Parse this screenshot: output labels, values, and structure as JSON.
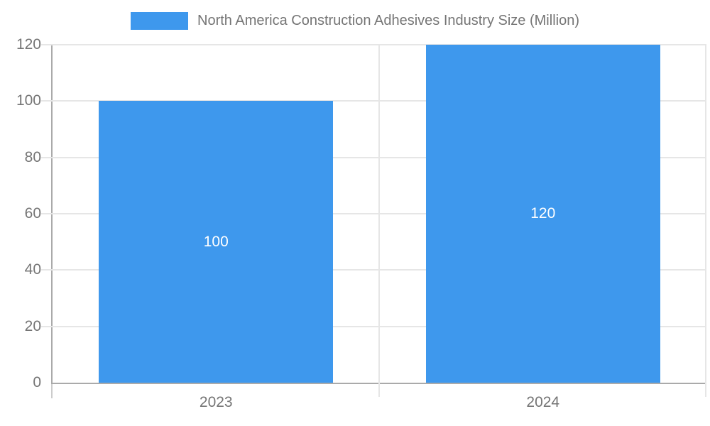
{
  "chart_data": {
    "type": "bar",
    "title": "North America Construction Adhesives Industry Size (Million)",
    "legend_entries": [
      "North America Construction Adhesives Industry Size (Million)"
    ],
    "legend_position": "top-center",
    "categories": [
      "2023",
      "2024"
    ],
    "series": [
      {
        "name": "North America Construction Adhesives Industry Size (Million)",
        "values": [
          100,
          120
        ]
      }
    ],
    "value_labels": [
      "100",
      "120"
    ],
    "xlabel": "",
    "ylabel": "",
    "ylim": [
      0,
      120
    ],
    "yticks": [
      0,
      20,
      40,
      60,
      80,
      100,
      120
    ],
    "grid": true,
    "colors": {
      "bar": "#3e98ed",
      "value_label": "#ffffff",
      "axis_line": "#aaaaaa",
      "gridline": "#e6e6e6",
      "tick_text": "#757575",
      "legend_text": "#757575",
      "background": "#ffffff"
    }
  }
}
